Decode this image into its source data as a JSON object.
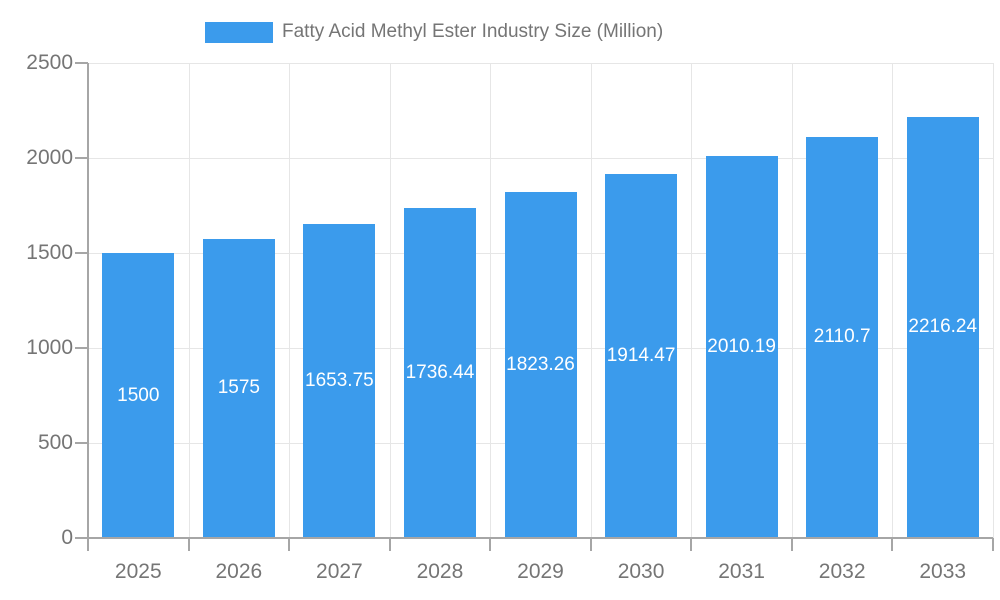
{
  "chart_data": {
    "type": "bar",
    "title": "Fatty Acid Methyl Ester Industry Size (Million)",
    "legend": {
      "position": "top",
      "label": "Fatty Acid Methyl Ester Industry Size (Million)"
    },
    "categories": [
      "2025",
      "2026",
      "2027",
      "2028",
      "2029",
      "2030",
      "2031",
      "2032",
      "2033"
    ],
    "values": [
      1500,
      1575,
      1653.75,
      1736.44,
      1823.26,
      1914.47,
      2010.19,
      2110.7,
      2216.24
    ],
    "value_labels": [
      "1500",
      "1575",
      "1653.75",
      "1736.44",
      "1823.26",
      "1914.47",
      "2010.19",
      "2110.7",
      "2216.24"
    ],
    "xlabel": "",
    "ylabel": "",
    "ylim": [
      0,
      2500
    ],
    "yticks": [
      0,
      500,
      1000,
      1500,
      2000,
      2500
    ],
    "ytick_labels": [
      "0",
      "500",
      "1000",
      "1500",
      "2000",
      "2500"
    ],
    "grid": true,
    "colors": {
      "bar": "#3b9bec",
      "grid": "#e6e6e6",
      "axis": "#a6a6a6",
      "tick_label": "#757575",
      "legend_label": "#757575",
      "value_label": "#ffffff"
    }
  }
}
